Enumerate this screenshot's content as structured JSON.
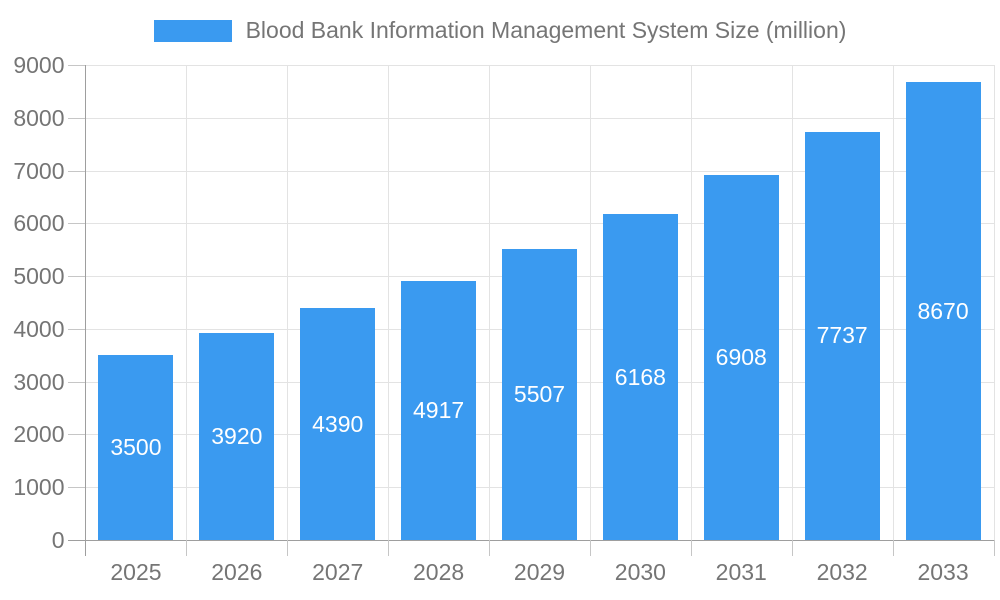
{
  "chart_data": {
    "type": "bar",
    "title": "Blood Bank Information Management System Size (million)",
    "categories": [
      "2025",
      "2026",
      "2027",
      "2028",
      "2029",
      "2030",
      "2031",
      "2032",
      "2033"
    ],
    "values": [
      3500,
      3920,
      4390,
      4917,
      5507,
      6168,
      6908,
      7737,
      8670
    ],
    "xlabel": "",
    "ylabel": "",
    "ylim": [
      0,
      9000
    ],
    "ytick_step": 1000,
    "grid": "on",
    "legend_position": "top-center",
    "value_labels": "inside-center",
    "colors": {
      "bar": "#3A9AF0",
      "bar_label": "#ffffff",
      "grid": "#e3e3e3",
      "axis": "#9e9e9e",
      "tick": "#c6c6c6",
      "text": "#757575"
    }
  }
}
